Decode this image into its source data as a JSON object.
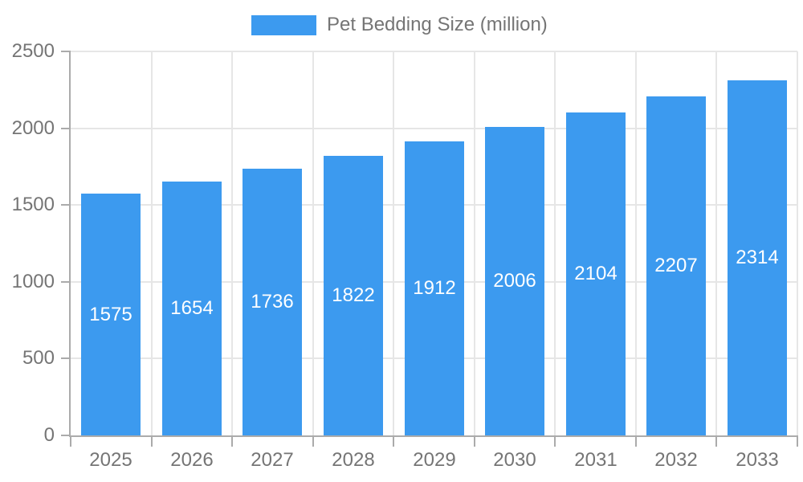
{
  "chart_data": {
    "type": "bar",
    "title": "",
    "legend": {
      "label": "Pet Bedding Size (million)",
      "position": "top"
    },
    "categories": [
      "2025",
      "2026",
      "2027",
      "2028",
      "2029",
      "2030",
      "2031",
      "2032",
      "2033"
    ],
    "series": [
      {
        "name": "Pet Bedding Size (million)",
        "values": [
          1575,
          1654,
          1736,
          1822,
          1912,
          2006,
          2104,
          2207,
          2314
        ]
      }
    ],
    "xlabel": "",
    "ylabel": "",
    "ylim": [
      0,
      2500
    ],
    "yticks": [
      0,
      500,
      1000,
      1500,
      2000,
      2500
    ],
    "grid": true,
    "value_labels": "inside-center"
  },
  "colors": {
    "bar": "#3C9AEF",
    "grid": "#E6E6E6",
    "axis": "#ABABAB",
    "text": "#757575",
    "value_label": "#FFFFFF"
  }
}
